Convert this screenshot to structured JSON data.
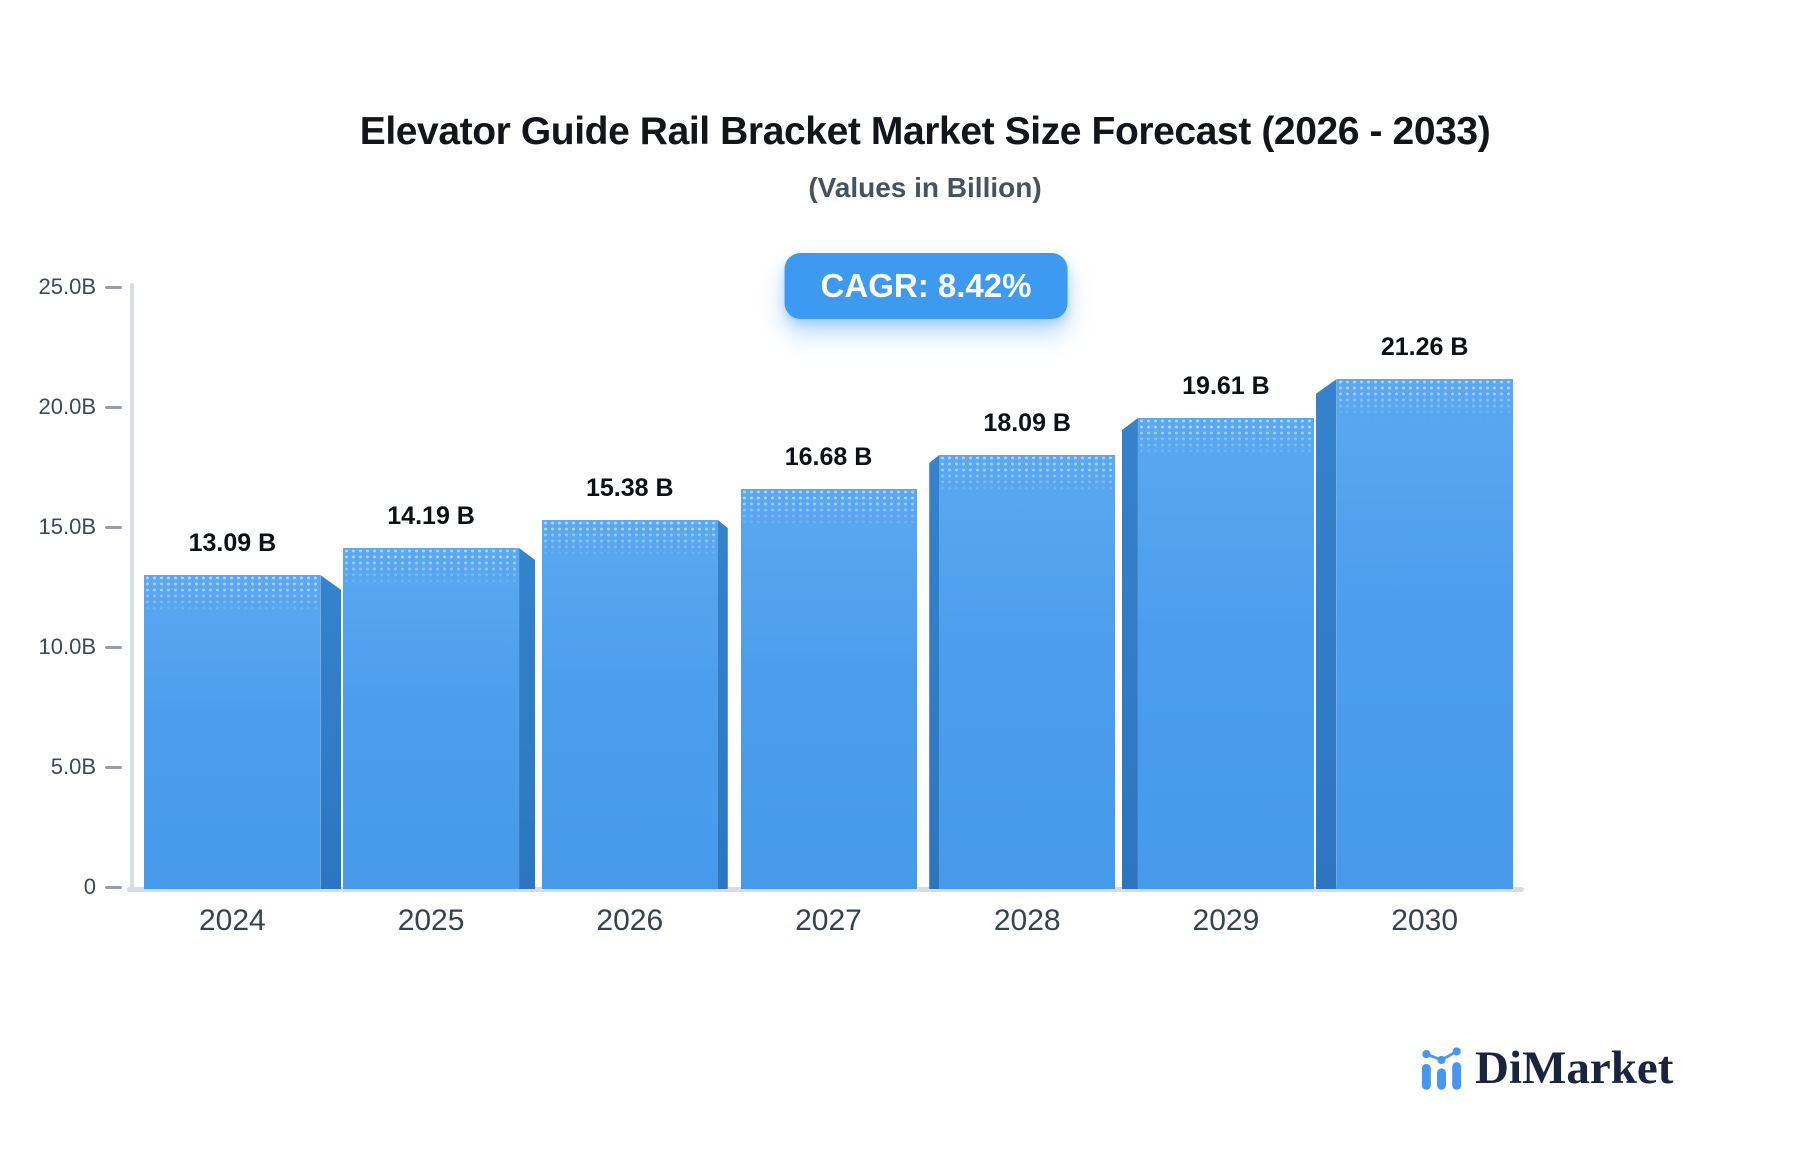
{
  "header": {
    "title": "Elevator Guide Rail Bracket Market Size Forecast (2026 - 2033)",
    "subtitle": "(Values in Billion)"
  },
  "cagr_badge": {
    "label": "CAGR: 8.42%"
  },
  "chart_data": {
    "type": "bar",
    "title": "Elevator Guide Rail Bracket Market Size Forecast (2026 - 2033)",
    "subtitle": "(Values in Billion)",
    "unit": "Billion",
    "cagr": "8.42%",
    "categories": [
      "2024",
      "2025",
      "2026",
      "2027",
      "2028",
      "2029",
      "2030"
    ],
    "values": [
      13.09,
      14.19,
      15.38,
      16.68,
      18.09,
      19.61,
      21.26
    ],
    "value_labels": [
      "13.09 B",
      "14.19 B",
      "15.38 B",
      "16.68 B",
      "18.09 B",
      "19.61 B",
      "21.26 B"
    ],
    "yticks": [
      {
        "label": "25.0B",
        "value": 25
      },
      {
        "label": "20.0B",
        "value": 20
      },
      {
        "label": "15.0B",
        "value": 15
      },
      {
        "label": "10.0B",
        "value": 10
      },
      {
        "label": "5.0B",
        "value": 5
      },
      {
        "label": "0",
        "value": 0
      }
    ],
    "ylim": [
      0,
      25
    ],
    "grid": false,
    "legend": "none",
    "colors": {
      "bar_face": "#4C9EEC",
      "bar_side": "#2E79C2",
      "badge": "#3E9AF0",
      "axis": "#D9DCE1",
      "value_label": "#0D1014",
      "tick_label": "#3F4956"
    }
  },
  "branding": {
    "name": "DiMarket",
    "icon": "bar-chart-logo-icon",
    "icon_color": "#4796F2"
  }
}
